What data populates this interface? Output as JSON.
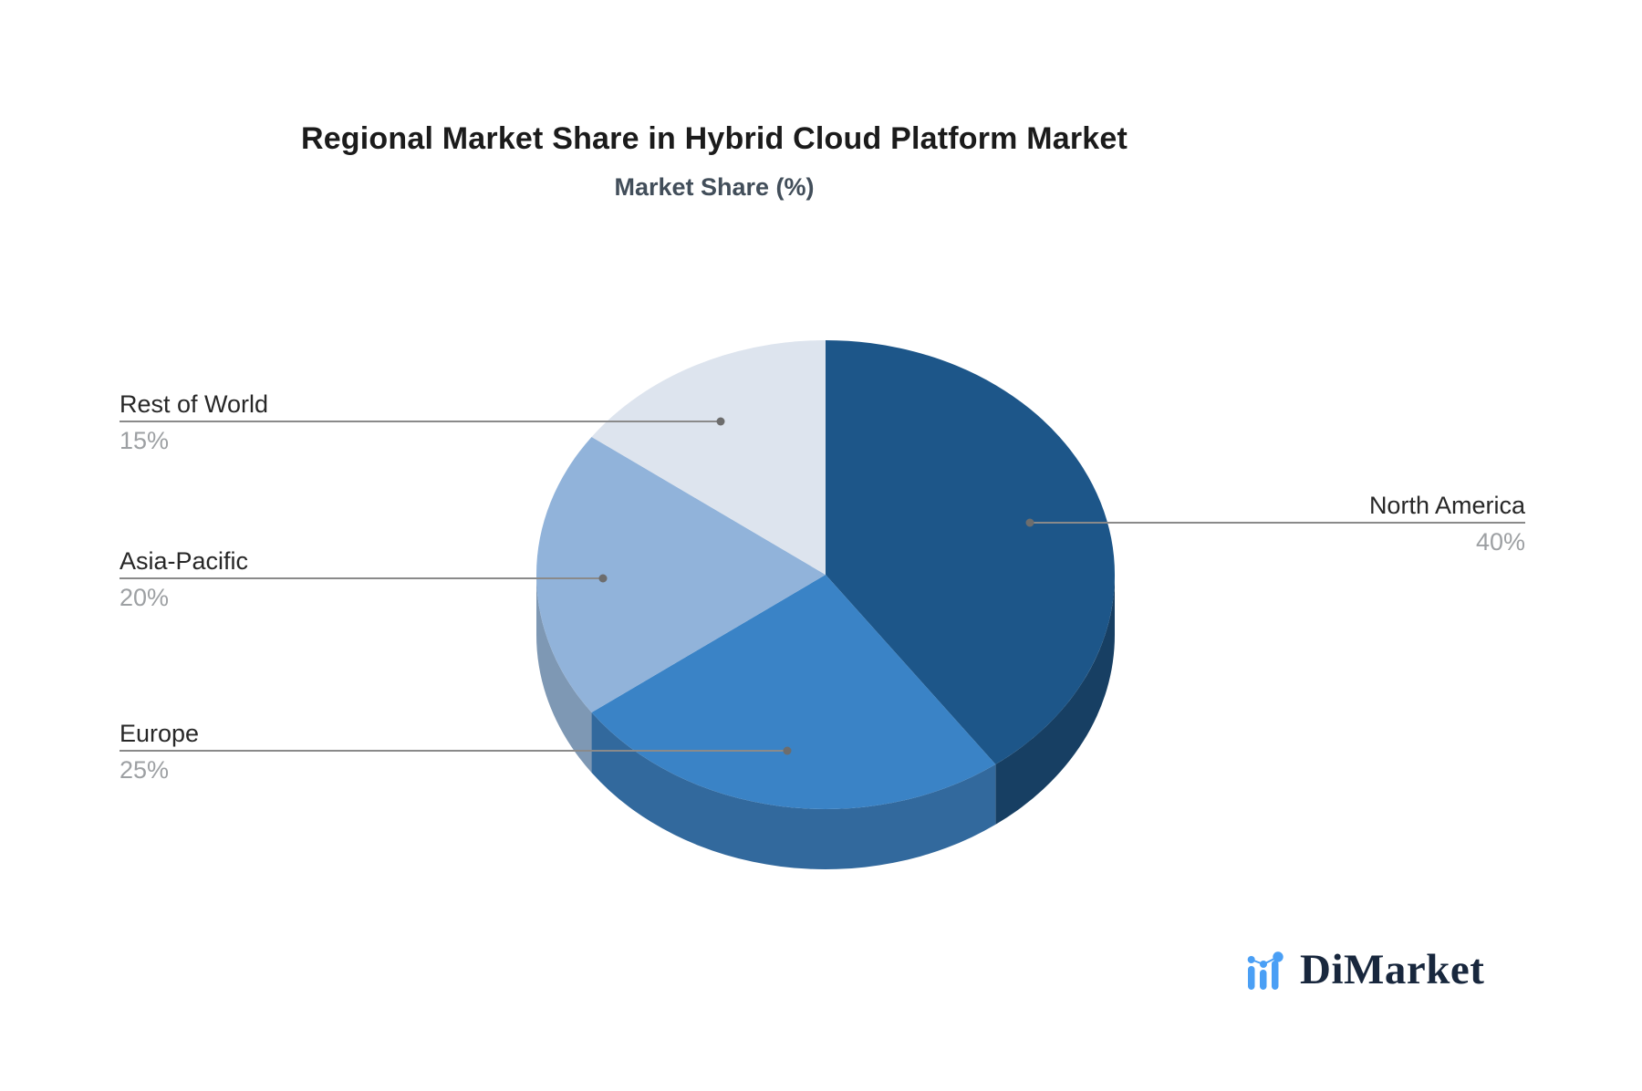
{
  "header": {
    "title": "Regional Market Share in Hybrid Cloud Platform Market",
    "subtitle": "Market Share (%)"
  },
  "chart_data": {
    "type": "pie",
    "style": "3d",
    "title": "Regional Market Share in Hybrid Cloud Platform Market",
    "subtitle": "Market Share (%)",
    "unit": "%",
    "legend_position": "none",
    "labels_style": "outside-leader-lines",
    "start_angle": "12-oclock-clockwise",
    "slices": [
      {
        "label": "North America",
        "value": 40,
        "pct_text": "40%",
        "color": "#1d5689",
        "side_color": "#173f63",
        "label_side": "right"
      },
      {
        "label": "Europe",
        "value": 25,
        "pct_text": "25%",
        "color": "#3a83c6",
        "side_color": "#32699d",
        "label_side": "left"
      },
      {
        "label": "Asia-Pacific",
        "value": 20,
        "pct_text": "20%",
        "color": "#91b3da",
        "side_color": "#7e98b4",
        "label_side": "left"
      },
      {
        "label": "Rest of World",
        "value": 15,
        "pct_text": "15%",
        "color": "#dde4ee",
        "side_color": "#c2cedd",
        "label_side": "left"
      }
    ]
  },
  "branding": {
    "logo_text": "DiMarket",
    "logo_icon": "bar-chart-trend-icon",
    "logo_icon_color": "#4a9ff5",
    "logo_text_color": "#18273d"
  },
  "colors": {
    "leader_line": "#8a8a8a",
    "leader_dot": "#6d6d6d",
    "title": "#1b1b1b",
    "subtitle": "#424e5a",
    "label_text": "#272727",
    "pct_text": "#9da0a3"
  }
}
